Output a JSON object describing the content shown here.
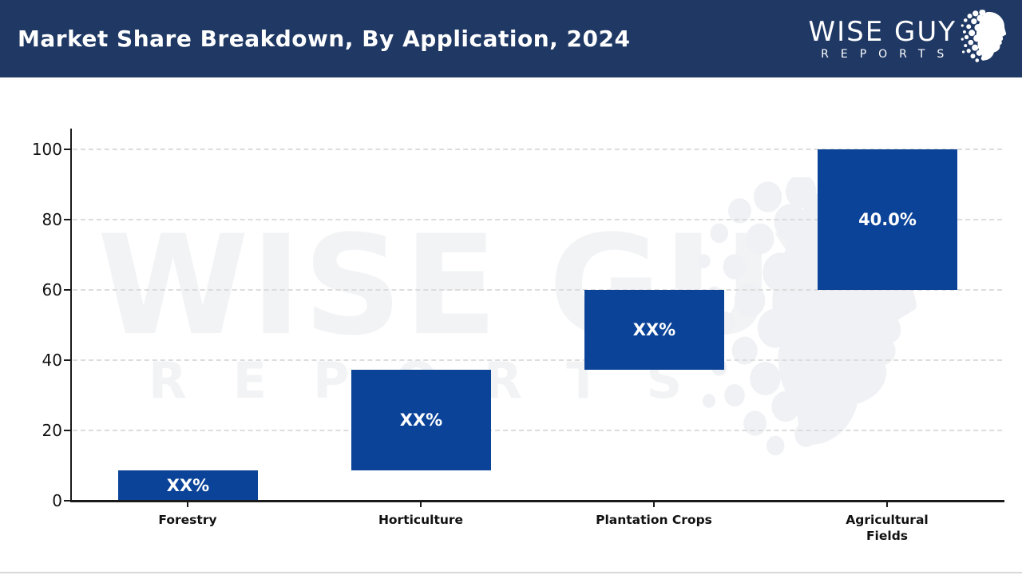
{
  "header": {
    "title": "Market Share Breakdown, By Application, 2024",
    "logo": {
      "wordmark": "WISE GUY",
      "subtitle": "REPORTS"
    }
  },
  "watermark": {
    "wordmark": "WISE GUY",
    "subtitle": "REPORTS"
  },
  "chart_data": {
    "type": "bar",
    "subtype": "floating_waterfall_segments",
    "title": "Market Share Breakdown, By Application, 2024",
    "categories": [
      "Forestry",
      "Horticulture",
      "Plantation Crops",
      "Agricultural Fields"
    ],
    "category_lines": [
      [
        "Forestry"
      ],
      [
        "Horticulture"
      ],
      [
        "Plantation Crops"
      ],
      [
        "Agricultural",
        "Fields"
      ]
    ],
    "series": [
      {
        "name": "Market share",
        "ranges": [
          [
            0,
            8.6
          ],
          [
            8.6,
            37.3
          ],
          [
            37.3,
            60.0
          ],
          [
            60.0,
            100.0
          ]
        ],
        "values": [
          8.6,
          28.7,
          22.7,
          40.0
        ]
      }
    ],
    "bar_labels": [
      "XX%",
      "XX%",
      "XX%",
      "40.0%"
    ],
    "xlabel": "",
    "ylabel": "",
    "ylim": [
      0,
      105
    ],
    "yticks": [
      0,
      20,
      40,
      60,
      80,
      100
    ],
    "grid": "horizontal-dashed",
    "legend": "none",
    "colors": {
      "bar": "#0b4398",
      "bar_label": "#ffffff",
      "header_bg": "#1f3864",
      "axis": "#1a1a1a",
      "gridline": "#dcdcdc",
      "watermark": "#f2f3f5"
    }
  }
}
